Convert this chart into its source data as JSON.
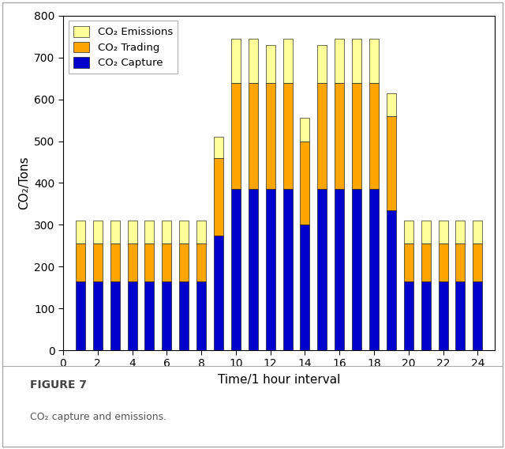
{
  "hours": [
    1,
    2,
    3,
    4,
    5,
    6,
    7,
    8,
    9,
    10,
    11,
    12,
    13,
    14,
    15,
    16,
    17,
    18,
    19,
    20,
    21,
    22,
    23,
    24
  ],
  "capture": [
    165,
    165,
    165,
    165,
    165,
    165,
    165,
    165,
    275,
    385,
    385,
    385,
    385,
    300,
    385,
    385,
    385,
    385,
    335,
    165,
    165,
    165,
    165,
    165
  ],
  "trading": [
    90,
    90,
    90,
    90,
    90,
    90,
    90,
    90,
    185,
    255,
    255,
    255,
    255,
    200,
    255,
    255,
    255,
    255,
    225,
    90,
    90,
    90,
    90,
    90
  ],
  "emissions": [
    55,
    55,
    55,
    55,
    55,
    55,
    55,
    55,
    50,
    105,
    105,
    90,
    105,
    55,
    90,
    105,
    105,
    105,
    55,
    55,
    55,
    55,
    55,
    55
  ],
  "color_capture": "#0000CC",
  "color_trading": "#FFA500",
  "color_emissions": "#FFFF99",
  "ylabel": "CO₂/Tons",
  "xlabel": "Time/1 hour interval",
  "ylim": [
    0,
    800
  ],
  "yticks": [
    0,
    100,
    200,
    300,
    400,
    500,
    600,
    700,
    800
  ],
  "xticks": [
    0,
    2,
    4,
    6,
    8,
    10,
    12,
    14,
    16,
    18,
    20,
    22,
    24
  ],
  "legend_labels": [
    "CO₂ Emissions",
    "CO₂ Trading",
    "CO₂ Capture"
  ],
  "figure_label": "FIGURE 7",
  "caption": "CO₂ capture and emissions.",
  "bar_width": 0.55,
  "fig_width": 6.4,
  "fig_height": 5.68,
  "border_color": "#888888"
}
